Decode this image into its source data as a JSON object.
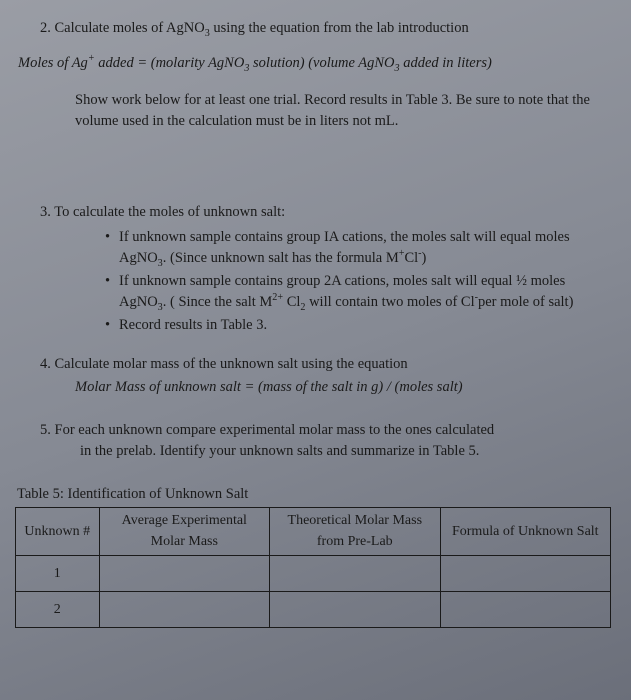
{
  "q2": {
    "title_prefix": "2. Calculate moles of AgNO",
    "title_sub": "3",
    "title_suffix": " using the equation from the lab introduction",
    "eq_pre": "Moles of Ag",
    "eq_sup": "+",
    "eq_mid1": " added = (molarity AgNO",
    "eq_sub1": "3",
    "eq_mid2": " solution) (volume AgNO",
    "eq_sub2": "3",
    "eq_post": " added in liters)",
    "instruction": "Show work below for at least one trial. Record results in Table 3. Be sure to note that the volume used in the calculation must be in liters not mL."
  },
  "q3": {
    "title": "3. To calculate the moles of unknown salt:",
    "b1_a": "If unknown sample contains group IA cations, the moles salt will equal moles AgNO",
    "b1_sub": "3",
    "b1_b": ". (Since unknown salt has the formula M",
    "b1_sup": "+",
    "b1_c": "Cl",
    "b1_sup2": "-",
    "b1_d": ")",
    "b2_a": "If unknown sample contains group 2A cations, moles salt will equal ½  moles AgNO",
    "b2_sub": "3",
    "b2_b": ". ( Since the salt M",
    "b2_sup": "2+",
    "b2_c": " Cl",
    "b2_sub2": "2",
    "b2_d": " will contain two moles of Cl",
    "b2_sup2": "-",
    "b2_e": "per mole of salt)",
    "b3": "Record results in Table 3."
  },
  "q4": {
    "title": "4. Calculate molar mass of the unknown salt using the equation",
    "eq": "Molar Mass of unknown salt = (mass of the salt in g) / (moles salt)"
  },
  "q5": {
    "line1": "5. For each unknown compare experimental molar mass to the ones calculated",
    "line2": "in the prelab. Identify your unknown salts and summarize in Table 5."
  },
  "table": {
    "caption": "Table 5: Identification of Unknown Salt",
    "headers": {
      "c1": "Unknown #",
      "c2": "Average Experimental Molar Mass",
      "c3": "Theoretical Molar Mass from Pre-Lab",
      "c4": "Formula of Unknown Salt"
    },
    "rows": [
      {
        "num": "1",
        "avg": "",
        "theo": "",
        "formula": ""
      },
      {
        "num": "2",
        "avg": "",
        "theo": "",
        "formula": ""
      }
    ]
  }
}
